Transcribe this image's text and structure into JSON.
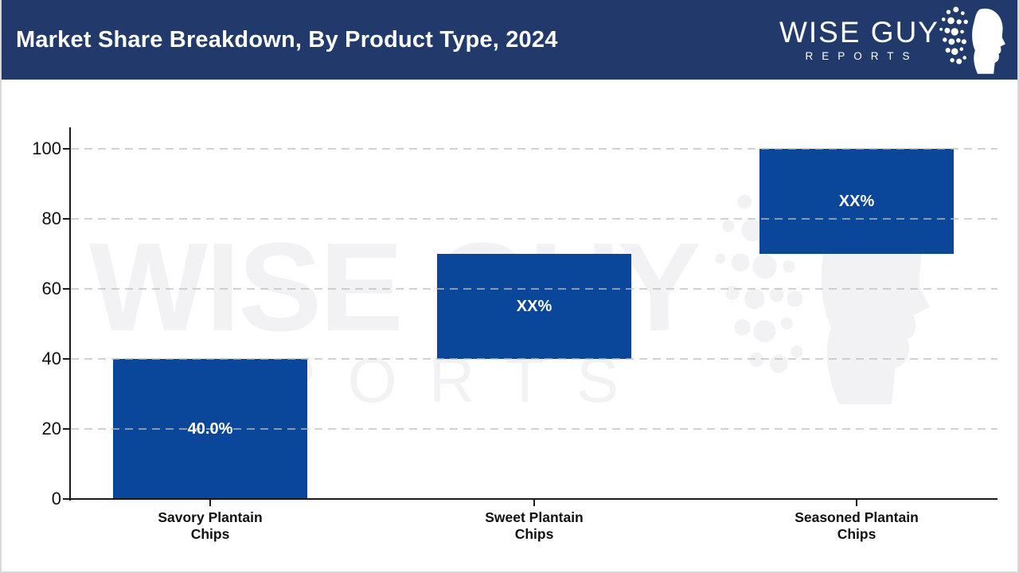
{
  "header": {
    "title": "Market Share Breakdown, By Product Type, 2024",
    "bg_color": "#213a6b",
    "logo": {
      "line1": "WISE GUY",
      "line2": "REPORTS"
    }
  },
  "watermark": {
    "line1": "WISE GUY",
    "line2": "REPORTS"
  },
  "chart_data": {
    "type": "bar",
    "variant": "waterfall",
    "title": "Market Share Breakdown, By Product Type, 2024",
    "categories": [
      "Savory Plantain\nChips",
      "Sweet Plantain\nChips",
      "Seasoned Plantain\nChips"
    ],
    "bars": [
      {
        "category": "Savory Plantain Chips",
        "start": 0,
        "end": 40,
        "label": "40.0%"
      },
      {
        "category": "Sweet Plantain Chips",
        "start": 40,
        "end": 70,
        "label": "XX%"
      },
      {
        "category": "Seasoned Plantain Chips",
        "start": 70,
        "end": 100,
        "label": "XX%"
      }
    ],
    "ylim": [
      0,
      100
    ],
    "yticks": [
      0,
      20,
      40,
      60,
      80,
      100
    ],
    "xlabel": "",
    "ylabel": "",
    "grid": "horizontal-dashed",
    "legend": "none",
    "bar_color": "#0a4699",
    "bar_label_color": "#ffffff",
    "grid_color": "#dcdcdc",
    "watermark_color": "#f2f2f5"
  }
}
